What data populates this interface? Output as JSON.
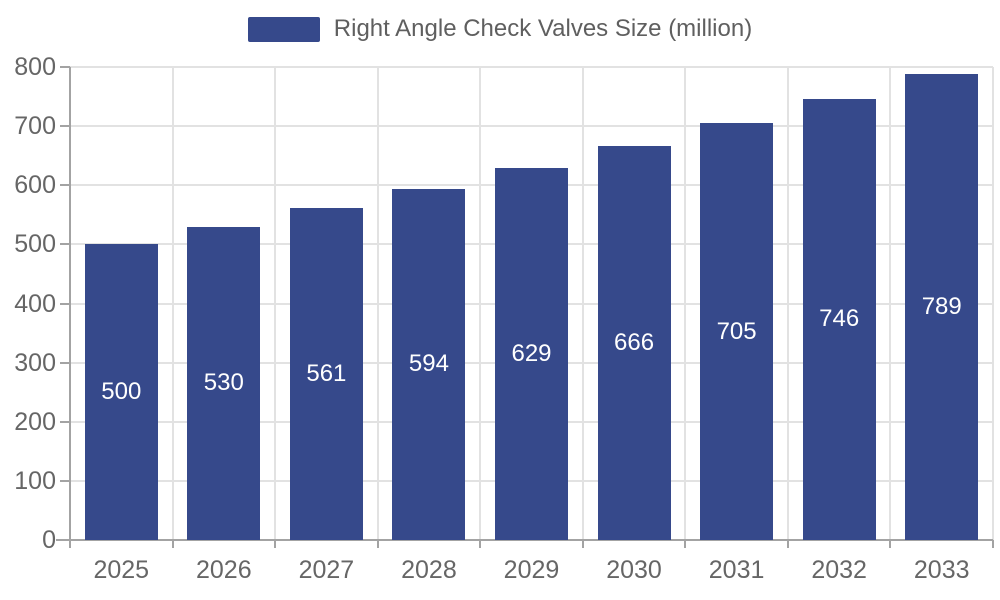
{
  "chart_data": {
    "type": "bar",
    "title": "Right Angle Check Valves Size (million)",
    "legend": {
      "label": "Right Angle Check Valves Size (million)",
      "position": "top-center"
    },
    "categories": [
      "2025",
      "2026",
      "2027",
      "2028",
      "2029",
      "2030",
      "2031",
      "2032",
      "2033"
    ],
    "values": [
      500,
      530,
      561,
      594,
      629,
      666,
      705,
      746,
      789
    ],
    "xlabel": "",
    "ylabel": "",
    "ylim": [
      0,
      800
    ],
    "ytick_step": 100,
    "ytick_labels": [
      "0",
      "100",
      "200",
      "300",
      "400",
      "500",
      "600",
      "700",
      "800"
    ],
    "grid": true,
    "bar_value_labels_inside": true,
    "colors": {
      "bar": "#36498b",
      "bar_label": "#ffffff",
      "axis": "#a3a3a3",
      "gridline": "#e2e2e2",
      "tick_text": "#666666",
      "legend_text": "#5f5f5f",
      "background": "#ffffff"
    }
  }
}
